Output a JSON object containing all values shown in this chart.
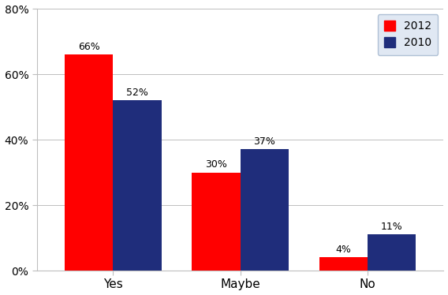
{
  "categories": [
    "Yes",
    "Maybe",
    "No"
  ],
  "values_2012": [
    0.66,
    0.3,
    0.04
  ],
  "values_2010": [
    0.52,
    0.37,
    0.11
  ],
  "labels_2012": [
    "66%",
    "30%",
    "4%"
  ],
  "labels_2010": [
    "52%",
    "37%",
    "11%"
  ],
  "color_2012": "#FF0000",
  "color_2010": "#1F2D7B",
  "legend_2012": "2012",
  "legend_2010": "2010",
  "ylim": [
    0,
    0.8
  ],
  "yticks": [
    0.0,
    0.2,
    0.4,
    0.6,
    0.8
  ],
  "ytick_labels": [
    "0%",
    "20%",
    "40%",
    "60%",
    "80%"
  ],
  "bar_width": 0.38,
  "legend_facecolor": "#D9E3F0",
  "background_color": "#FFFFFF",
  "grid_color": "#BEBEBE"
}
